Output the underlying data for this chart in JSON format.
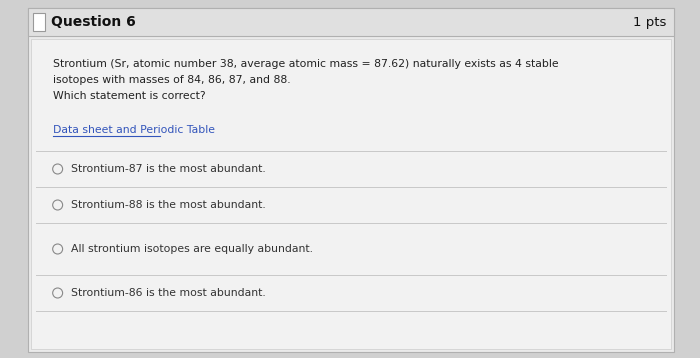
{
  "title": "Question 6",
  "pts": "1 pts",
  "question_text_line1": "Strontium (Sr, atomic number 38, average atomic mass = 87.62) naturally exists as 4 stable",
  "question_text_line2": "isotopes with masses of 84, 86, 87, and 88.",
  "question_text_line3": "Which statement is correct?",
  "link_text": "Data sheet and Periodic Table",
  "options": [
    "Strontium-87 is the most abundant.",
    "Strontium-88 is the most abundant.",
    "All strontium isotopes are equally abundant.",
    "Strontium-86 is the most abundant."
  ],
  "bg_color": "#d0d0d0",
  "header_bg": "#e0e0e0",
  "card_bg": "#eaeaea",
  "card_inner_bg": "#f2f2f2",
  "title_color": "#111111",
  "text_color": "#222222",
  "link_color": "#3355bb",
  "pts_color": "#111111",
  "option_text_color": "#333333",
  "divider_color": "#c8c8c8",
  "circle_color": "#888888"
}
